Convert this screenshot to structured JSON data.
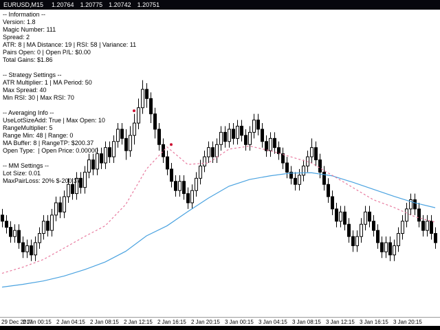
{
  "titlebar": {
    "symbol": "EURUSD,M15",
    "open": "1.20764",
    "high": "1.20775",
    "low": "1.20742",
    "close": "1.20751"
  },
  "overlay": {
    "lines": [
      "-- Information --",
      "Version: 1.8",
      "Magic Number: 111",
      "Spread: 2",
      "ATR: 8 | MA Distance: 19 | RSI: 58 | Variance: 11",
      "Pairs Open: 0 | Open P/L: $0.00",
      "Total Gains: $1.86",
      "",
      "-- Strategy Settings --",
      "ATR Multiplier: 1 | MA Period: 50",
      "Max Spread: 40",
      "Min RSI: 30 | Max RSI: 70",
      "",
      "-- Averaging Info --",
      "UseLotSizeAdd: True | Max Open: 10",
      "RangeMultiplier: 5",
      "Range Min: 48 | Range: 0",
      "MA Buffer: 8 | RangeTP: $200.37",
      "Open Type:  | Open Price: 0.00000",
      "",
      "-- MM Settings --",
      "Lot Size: 0.01",
      "MaxPairLoss: 20% $-200.37"
    ]
  },
  "chart_data": {
    "type": "candlestick",
    "symbol": "EURUSD",
    "timeframe": "M15",
    "background": "#ffffff",
    "bull_color": "#ffffff",
    "bear_color": "#000000",
    "outline_color": "#000000",
    "grid": false,
    "ylim": [
      1.2,
      1.21
    ],
    "candle_spacing": 6,
    "x_ticks": [
      {
        "label": "29 Dec 2017",
        "px": 2
      },
      {
        "label": "2 Jan 00:15",
        "px": 33
      },
      {
        "label": "2 Jan 04:15",
        "px": 82
      },
      {
        "label": "2 Jan 08:15",
        "px": 131
      },
      {
        "label": "2 Jan 12:15",
        "px": 180
      },
      {
        "label": "2 Jan 16:15",
        "px": 229
      },
      {
        "label": "2 Jan 20:15",
        "px": 278
      },
      {
        "label": "3 Jan 00:15",
        "px": 327
      },
      {
        "label": "3 Jan 04:15",
        "px": 376
      },
      {
        "label": "3 Jan 08:15",
        "px": 425
      },
      {
        "label": "3 Jan 12:15",
        "px": 474
      },
      {
        "label": "3 Jan 16:15",
        "px": 523
      },
      {
        "label": "3 Jan 20:15",
        "px": 572
      }
    ],
    "candles": [
      [
        1.2033,
        1.2035,
        1.2029,
        1.2031
      ],
      [
        1.2031,
        1.2033,
        1.2027,
        1.2029
      ],
      [
        1.2029,
        1.2031,
        1.2024,
        1.2026
      ],
      [
        1.2026,
        1.203,
        1.2024,
        1.2028
      ],
      [
        1.2028,
        1.203,
        1.2022,
        1.2024
      ],
      [
        1.2024,
        1.2026,
        1.2019,
        1.2021
      ],
      [
        1.2021,
        1.2025,
        1.2019,
        1.2023
      ],
      [
        1.2023,
        1.2025,
        1.2018,
        1.202
      ],
      [
        1.202,
        1.2026,
        1.2018,
        1.2024
      ],
      [
        1.2024,
        1.2029,
        1.2022,
        1.2027
      ],
      [
        1.2027,
        1.2033,
        1.2025,
        1.2031
      ],
      [
        1.2031,
        1.2033,
        1.2026,
        1.2028
      ],
      [
        1.2028,
        1.2035,
        1.2026,
        1.2033
      ],
      [
        1.2033,
        1.2039,
        1.2031,
        1.2037
      ],
      [
        1.2037,
        1.2039,
        1.2032,
        1.2034
      ],
      [
        1.2034,
        1.2041,
        1.2032,
        1.2039
      ],
      [
        1.2039,
        1.2045,
        1.2037,
        1.2043
      ],
      [
        1.2043,
        1.2045,
        1.2038,
        1.204
      ],
      [
        1.204,
        1.2047,
        1.2038,
        1.2045
      ],
      [
        1.2045,
        1.2047,
        1.204,
        1.2042
      ],
      [
        1.2042,
        1.2049,
        1.204,
        1.2047
      ],
      [
        1.2047,
        1.2053,
        1.2045,
        1.2051
      ],
      [
        1.2051,
        1.2053,
        1.2046,
        1.2048
      ],
      [
        1.2048,
        1.2055,
        1.2046,
        1.2053
      ],
      [
        1.2053,
        1.2055,
        1.2048,
        1.205
      ],
      [
        1.205,
        1.2057,
        1.2048,
        1.2055
      ],
      [
        1.2055,
        1.2057,
        1.205,
        1.2052
      ],
      [
        1.2052,
        1.2059,
        1.205,
        1.2057
      ],
      [
        1.2057,
        1.2063,
        1.2055,
        1.2061
      ],
      [
        1.2061,
        1.2063,
        1.2056,
        1.2058
      ],
      [
        1.2058,
        1.2061,
        1.2051,
        1.2054
      ],
      [
        1.2054,
        1.2062,
        1.2052,
        1.2059
      ],
      [
        1.2059,
        1.2066,
        1.2056,
        1.2063
      ],
      [
        1.2063,
        1.2071,
        1.2061,
        1.2068
      ],
      [
        1.2068,
        1.2077,
        1.2066,
        1.2074
      ],
      [
        1.2074,
        1.2076,
        1.2068,
        1.2071
      ],
      [
        1.2071,
        1.2073,
        1.2063,
        1.2066
      ],
      [
        1.2066,
        1.2068,
        1.2058,
        1.2061
      ],
      [
        1.2061,
        1.2063,
        1.2054,
        1.2056
      ],
      [
        1.2056,
        1.2058,
        1.205,
        1.2052
      ],
      [
        1.2052,
        1.2054,
        1.2046,
        1.2048
      ],
      [
        1.2048,
        1.205,
        1.2042,
        1.2044
      ],
      [
        1.2044,
        1.2046,
        1.2039,
        1.2041
      ],
      [
        1.2041,
        1.2046,
        1.2039,
        1.2044
      ],
      [
        1.2044,
        1.2046,
        1.2038,
        1.204
      ],
      [
        1.204,
        1.2042,
        1.2035,
        1.2037
      ],
      [
        1.2037,
        1.2043,
        1.2035,
        1.2041
      ],
      [
        1.2041,
        1.2047,
        1.2039,
        1.2045
      ],
      [
        1.2045,
        1.2051,
        1.2043,
        1.2049
      ],
      [
        1.2049,
        1.2054,
        1.2047,
        1.2052
      ],
      [
        1.2052,
        1.2057,
        1.205,
        1.2055
      ],
      [
        1.2055,
        1.2057,
        1.205,
        1.2052
      ],
      [
        1.2052,
        1.2058,
        1.205,
        1.2056
      ],
      [
        1.2056,
        1.2062,
        1.2054,
        1.206
      ],
      [
        1.206,
        1.2062,
        1.2055,
        1.2057
      ],
      [
        1.2057,
        1.2063,
        1.2055,
        1.2061
      ],
      [
        1.2061,
        1.2063,
        1.2056,
        1.2058
      ],
      [
        1.2058,
        1.2064,
        1.2056,
        1.2062
      ],
      [
        1.2062,
        1.2064,
        1.2057,
        1.2059
      ],
      [
        1.2059,
        1.2061,
        1.2054,
        1.2056
      ],
      [
        1.2056,
        1.2062,
        1.2054,
        1.206
      ],
      [
        1.206,
        1.2066,
        1.2058,
        1.2064
      ],
      [
        1.2064,
        1.2066,
        1.2059,
        1.2061
      ],
      [
        1.2061,
        1.2063,
        1.2055,
        1.2057
      ],
      [
        1.2057,
        1.2059,
        1.2052,
        1.2054
      ],
      [
        1.2054,
        1.206,
        1.2052,
        1.2058
      ],
      [
        1.2058,
        1.206,
        1.2053,
        1.2055
      ],
      [
        1.2055,
        1.2057,
        1.2051,
        1.2053
      ],
      [
        1.2053,
        1.2055,
        1.2048,
        1.205
      ],
      [
        1.205,
        1.2052,
        1.2045,
        1.2047
      ],
      [
        1.2047,
        1.2049,
        1.2043,
        1.2045
      ],
      [
        1.2045,
        1.2047,
        1.2041,
        1.2043
      ],
      [
        1.2043,
        1.2048,
        1.2041,
        1.2046
      ],
      [
        1.2046,
        1.2051,
        1.2044,
        1.2049
      ],
      [
        1.2049,
        1.2054,
        1.2047,
        1.2052
      ],
      [
        1.2052,
        1.2058,
        1.205,
        1.2055
      ],
      [
        1.2055,
        1.2057,
        1.2049,
        1.2051
      ],
      [
        1.2051,
        1.2053,
        1.2045,
        1.2047
      ],
      [
        1.2047,
        1.2049,
        1.2041,
        1.2043
      ],
      [
        1.2043,
        1.2045,
        1.2037,
        1.2039
      ],
      [
        1.2039,
        1.2041,
        1.2033,
        1.2035
      ],
      [
        1.2035,
        1.2037,
        1.2029,
        1.2031
      ],
      [
        1.2031,
        1.2036,
        1.2029,
        1.2034
      ],
      [
        1.2034,
        1.2036,
        1.2028,
        1.203
      ],
      [
        1.203,
        1.2032,
        1.2024,
        1.2026
      ],
      [
        1.2026,
        1.2028,
        1.2021,
        1.2023
      ],
      [
        1.2023,
        1.2028,
        1.2021,
        1.2026
      ],
      [
        1.2026,
        1.2032,
        1.2024,
        1.203
      ],
      [
        1.203,
        1.2036,
        1.2028,
        1.2034
      ],
      [
        1.2034,
        1.2036,
        1.2029,
        1.2031
      ],
      [
        1.2031,
        1.2033,
        1.2026,
        1.2028
      ],
      [
        1.2028,
        1.203,
        1.2022,
        1.2024
      ],
      [
        1.2024,
        1.2026,
        1.2019,
        1.2021
      ],
      [
        1.2021,
        1.2026,
        1.2019,
        1.2024
      ],
      [
        1.2024,
        1.2026,
        1.2018,
        1.202
      ],
      [
        1.202,
        1.2025,
        1.2018,
        1.2023
      ],
      [
        1.2023,
        1.2029,
        1.2021,
        1.2027
      ],
      [
        1.2027,
        1.2033,
        1.2025,
        1.2031
      ],
      [
        1.2031,
        1.2037,
        1.2029,
        1.2035
      ],
      [
        1.2035,
        1.204,
        1.2033,
        1.2038
      ],
      [
        1.2038,
        1.204,
        1.2033,
        1.2035
      ],
      [
        1.2035,
        1.2037,
        1.2029,
        1.2031
      ],
      [
        1.2031,
        1.2033,
        1.2026,
        1.2028
      ],
      [
        1.2028,
        1.2033,
        1.2026,
        1.2031
      ],
      [
        1.2031,
        1.2033,
        1.2025,
        1.2027
      ],
      [
        1.2027,
        1.2029,
        1.2022,
        1.2024
      ]
    ],
    "series": [
      {
        "name": "ma-50-line",
        "color": "#49a2e0",
        "dash": "",
        "sample_step": 5,
        "values": [
          1.20095,
          1.20104,
          1.20115,
          1.20131,
          1.20152,
          1.20177,
          1.20212,
          1.20262,
          1.20295,
          1.20341,
          1.20385,
          1.20424,
          1.20446,
          1.20458,
          1.20467,
          1.20468,
          1.20458,
          1.20437,
          1.20414,
          1.20391,
          1.2037,
          1.20354
        ]
      },
      {
        "name": "averaging-range-line",
        "color": "#e8799e",
        "dash": "3 3",
        "sample_step": 5,
        "values": [
          1.2014,
          1.2016,
          1.20185,
          1.20222,
          1.2026,
          1.20295,
          1.20365,
          1.2048,
          1.20552,
          1.20495,
          1.205,
          1.20545,
          1.20555,
          1.2054,
          1.2052,
          1.205,
          1.2046,
          1.2042,
          1.2038,
          1.20355,
          1.20325,
          1.20307
        ]
      }
    ],
    "markers": [
      {
        "index": 32,
        "price": 1.2067,
        "color": "#cc1133"
      },
      {
        "index": 41,
        "price": 1.2056,
        "color": "#cc1133"
      }
    ]
  }
}
